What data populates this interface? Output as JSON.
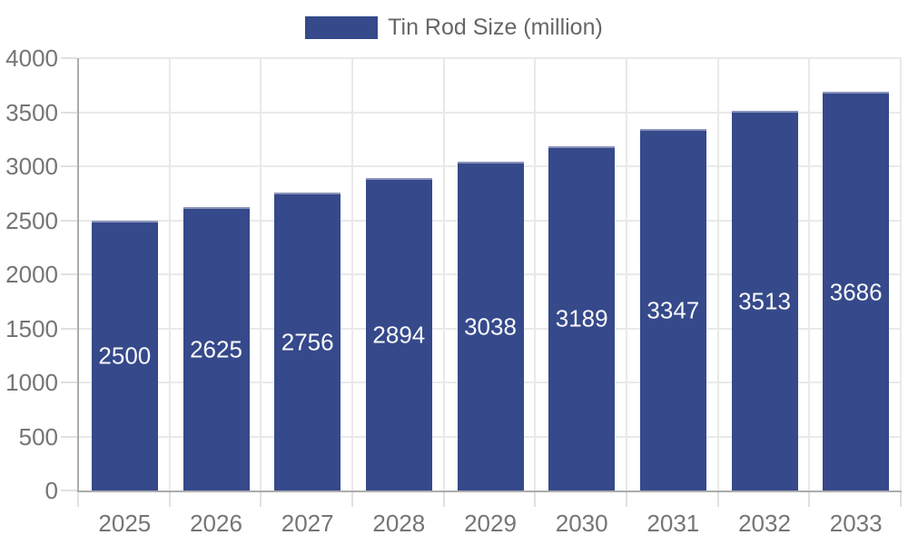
{
  "legend": {
    "label": "Tin Rod Size (million)"
  },
  "colors": {
    "bar": "#35498b",
    "bar_top_edge": "#8a93b9",
    "gridline": "#e9e9e9",
    "tick": "#e0e0e0",
    "axis_line": "#acacac",
    "axis_label": "#757575",
    "legend_text": "#666666",
    "value_label": "#fafafa",
    "background": "#ffffff"
  },
  "chart_data": {
    "type": "bar",
    "title": "",
    "xlabel": "",
    "ylabel": "",
    "categories": [
      "2025",
      "2026",
      "2027",
      "2028",
      "2029",
      "2030",
      "2031",
      "2032",
      "2033"
    ],
    "series": [
      {
        "name": "Tin Rod Size (million)",
        "values": [
          2500,
          2625,
          2756,
          2894,
          3038,
          3189,
          3347,
          3513,
          3686
        ]
      }
    ],
    "value_labels": [
      "2500",
      "2625",
      "2756",
      "2894",
      "3038",
      "3189",
      "3347",
      "3513",
      "3686"
    ],
    "value_label_position": "inside-center",
    "ylim": [
      0,
      4000
    ],
    "yticks": [
      0,
      500,
      1000,
      1500,
      2000,
      2500,
      3000,
      3500,
      4000
    ],
    "grid": true,
    "legend_position": "top-center"
  }
}
